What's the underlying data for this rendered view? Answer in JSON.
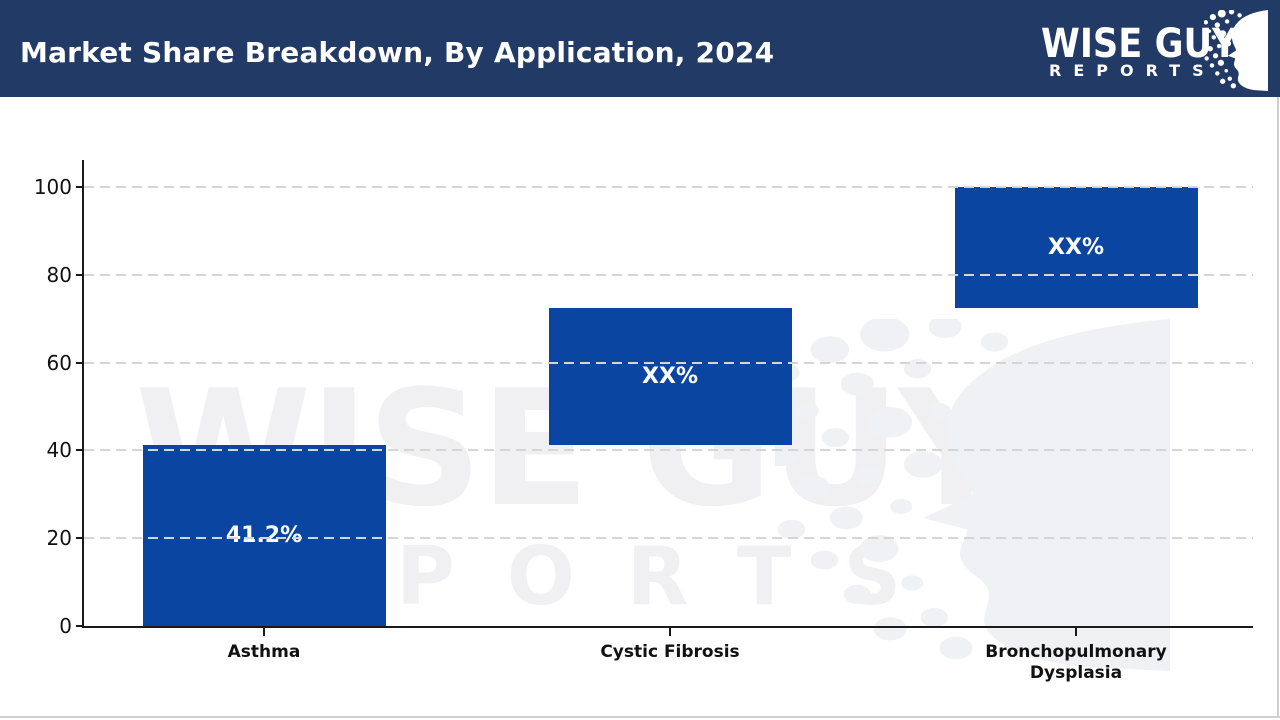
{
  "header": {
    "title": "Market Share Breakdown, By Application, 2024",
    "logo": {
      "line1": "WISE GUY",
      "line2": "REPORTS"
    }
  },
  "watermark": {
    "line1": "WISE GUY",
    "line2": "REPORTS"
  },
  "colors": {
    "header_bg": "#223a66",
    "bar": "#0a46a1",
    "grid": "#d5d5d5",
    "axis": "#1a1a1a",
    "bar_label_text": "#ffffff",
    "watermark": "#f0f0f2",
    "watermark_face": "#eff1f4"
  },
  "chart_data": {
    "type": "bar",
    "subtype": "waterfall",
    "title": "Market Share Breakdown, By Application, 2024",
    "xlabel": "",
    "ylabel": "",
    "ylim": [
      0,
      100
    ],
    "yticks": [
      0,
      20,
      40,
      60,
      80,
      100
    ],
    "grid": "horizontal-dashed",
    "legend": "none",
    "categories": [
      "Asthma",
      "Cystic Fibrosis",
      "Bronchopulmonary Dysplasia"
    ],
    "segments": [
      {
        "category": "Asthma",
        "start": 0,
        "end": 41.2,
        "label": "41.2%"
      },
      {
        "category": "Cystic Fibrosis",
        "start": 41.2,
        "end": 72.5,
        "label": "XX%"
      },
      {
        "category": "Bronchopulmonary Dysplasia",
        "start": 72.5,
        "end": 100,
        "label": "XX%"
      }
    ]
  }
}
